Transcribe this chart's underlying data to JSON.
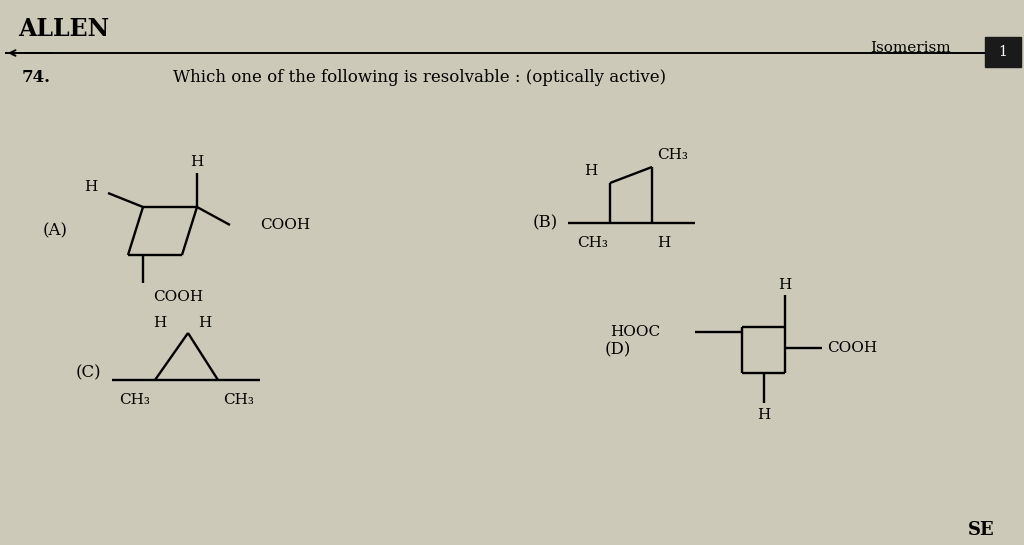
{
  "bg_color": "#ccc9b8",
  "title_text": "ALLEN",
  "isomerism_label": "Isomerism",
  "question_number": "74.",
  "question_text": "Which one of the following is resolvable : (optically active)",
  "footer_text": "SE",
  "label_A": "(A)",
  "label_B": "(B)",
  "label_C": "(C)",
  "label_D": "(D)"
}
